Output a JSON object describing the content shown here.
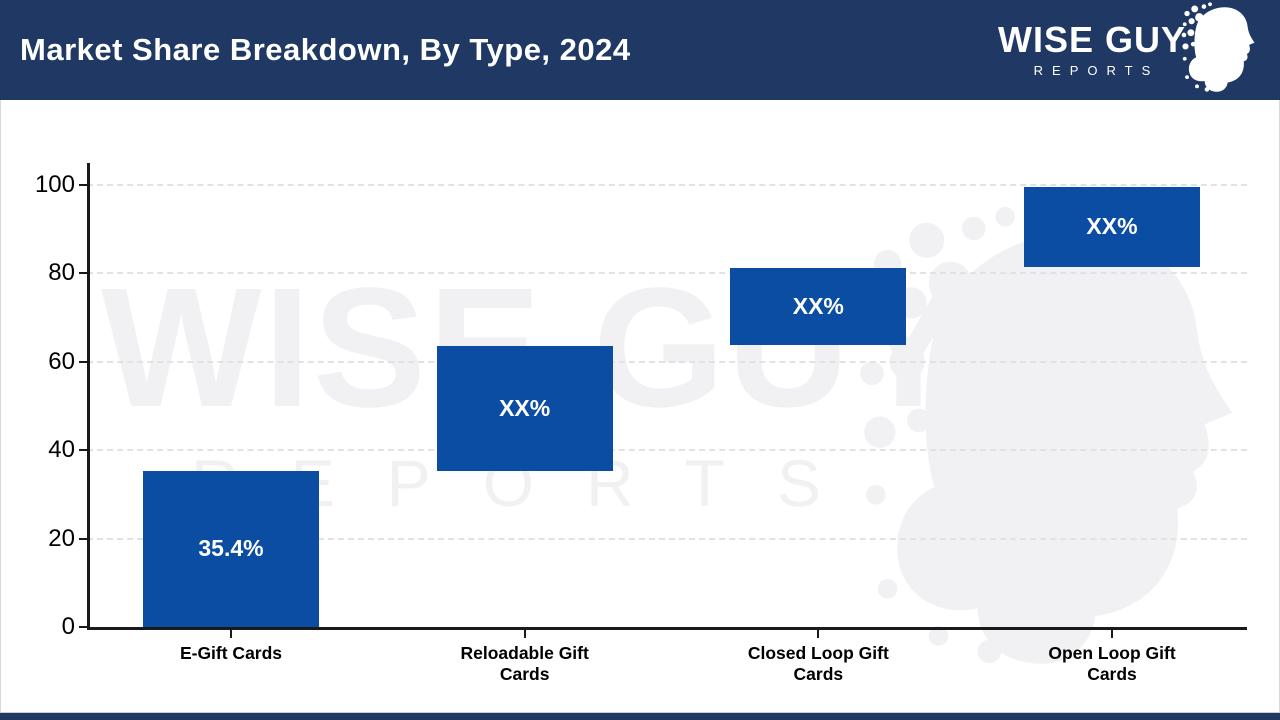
{
  "header": {
    "title": "Market Share Breakdown, By Type, 2024",
    "logo": {
      "line1": "WISE GUY",
      "line2": "REPORTS"
    },
    "bg_color": "#1F3864"
  },
  "watermark": {
    "line1": "WISE GUY",
    "line2": "REPORTS"
  },
  "chart_data": {
    "type": "bar",
    "subtype": "waterfall-floating-bars",
    "title": "Market Share Breakdown, By Type, 2024",
    "categories": [
      "E-Gift Cards",
      "Reloadable Gift Cards",
      "Closed Loop Gift Cards",
      "Open Loop Gift Cards"
    ],
    "category_label_lines": [
      [
        "E-Gift Cards"
      ],
      [
        "Reloadable Gift",
        "Cards"
      ],
      [
        "Closed Loop Gift",
        "Cards"
      ],
      [
        "Open Loop Gift",
        "Cards"
      ]
    ],
    "bars": [
      {
        "category": "E-Gift Cards",
        "start": 0,
        "end": 35.4,
        "label": "35.4%"
      },
      {
        "category": "Reloadable Gift Cards",
        "start": 35.4,
        "end": 63.5,
        "label": "XX%"
      },
      {
        "category": "Closed Loop Gift Cards",
        "start": 63.9,
        "end": 81.2,
        "label": "XX%"
      },
      {
        "category": "Open Loop Gift Cards",
        "start": 81.4,
        "end": 99.6,
        "label": "XX%"
      }
    ],
    "y_ticks": [
      0,
      20,
      40,
      60,
      80,
      100
    ],
    "ylim": [
      0,
      105
    ],
    "xlabel": "",
    "ylabel": "",
    "grid": "horizontal-dashed",
    "legend": "none",
    "bar_color": "#0B4DA2",
    "bar_label_color": "#FFFFFF",
    "axis_color": "#1A1A1A",
    "gridline_color": "#E2E2E2",
    "watermark_color": "#F1F1F4"
  }
}
